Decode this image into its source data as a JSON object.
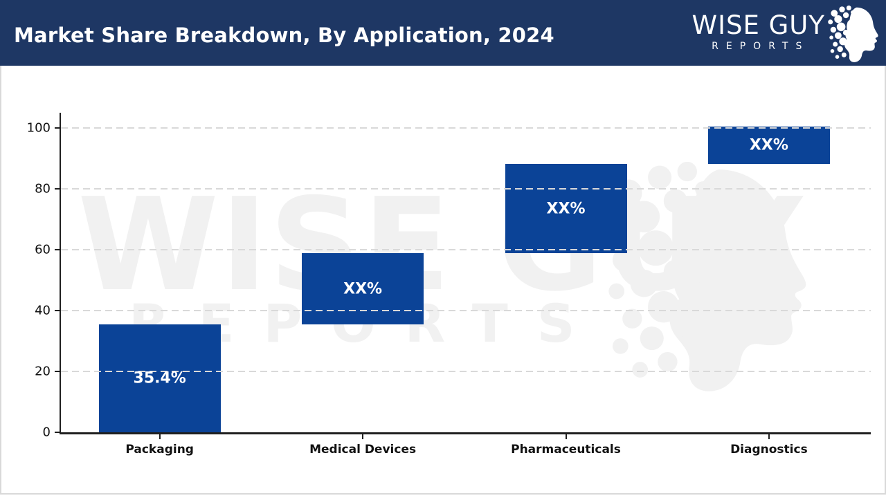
{
  "header": {
    "title": "Market Share Breakdown, By Application, 2024",
    "logo": {
      "line1": "WISE GUY",
      "line2": "REPORTS"
    }
  },
  "watermark": {
    "line1": "WISE GUY",
    "line2": "REPORTS"
  },
  "chart_data": {
    "type": "bar",
    "subtype": "waterfall",
    "title": "Market Share Breakdown, By Application, 2024",
    "categories": [
      "Packaging",
      "Medical Devices",
      "Pharmaceuticals",
      "Diagnostics"
    ],
    "segments": [
      {
        "category": "Packaging",
        "start": 0,
        "end": 35.4,
        "label": "35.4%"
      },
      {
        "category": "Medical Devices",
        "start": 35.4,
        "end": 58.8,
        "label": "XX%"
      },
      {
        "category": "Pharmaceuticals",
        "start": 58.8,
        "end": 88.2,
        "label": "XX%"
      },
      {
        "category": "Diagnostics",
        "start": 88.2,
        "end": 100.4,
        "label": "XX%"
      }
    ],
    "xlabel": "",
    "ylabel": "",
    "y_ticks": [
      0,
      20,
      40,
      60,
      80,
      100
    ],
    "ylim": [
      0,
      105
    ],
    "grid": "horizontal-dashed",
    "legend": "none",
    "colors": {
      "bar": "#0b4397",
      "bar_label": "#ffffff",
      "gridline": "#d9d9d9",
      "axis": "#1f1f1f",
      "tick_text": "#111111",
      "header_bg": "#1e3764",
      "header_text": "#ffffff",
      "watermark": "#f1f1f1"
    }
  }
}
